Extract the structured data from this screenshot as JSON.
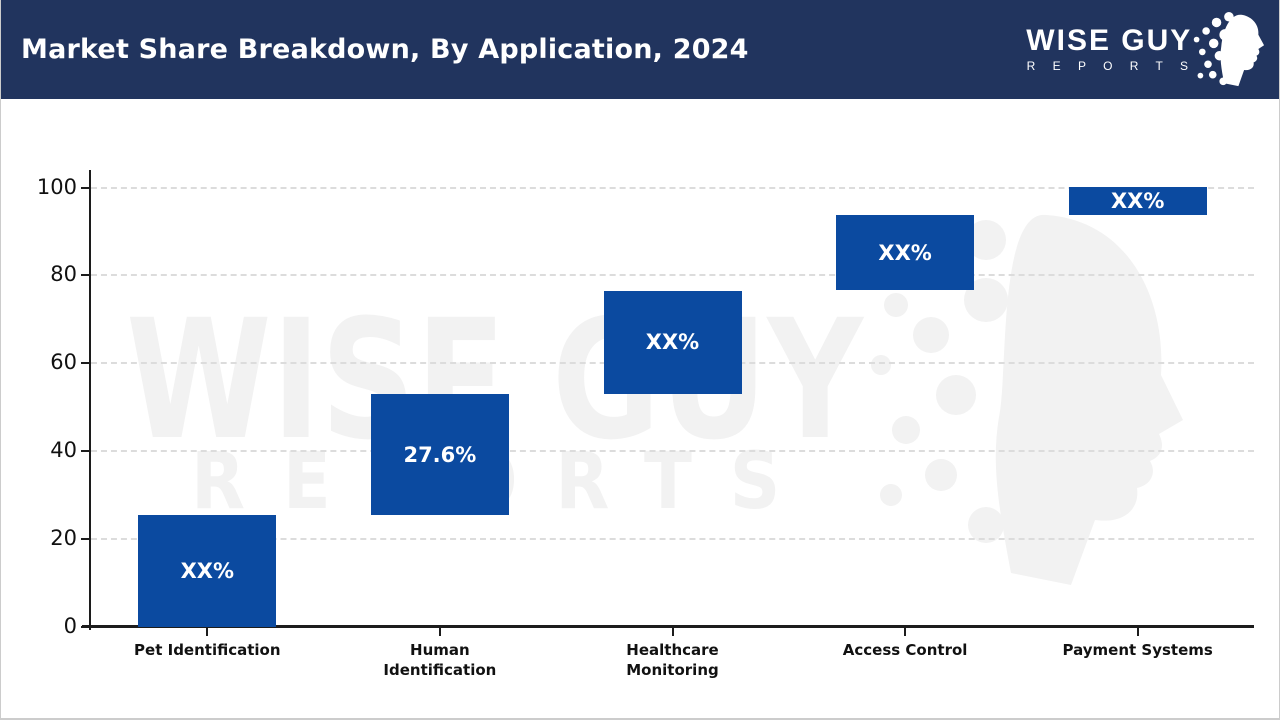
{
  "header": {
    "title": "Market Share Breakdown, By Application, 2024",
    "logo": {
      "name": "WISE GUY",
      "subtitle": "R E P O R T S"
    }
  },
  "watermark": {
    "line1": "WISE GUY",
    "line2": "REPORTS"
  },
  "colors": {
    "header_bg": "#21345e",
    "bar": "#0b4aa0",
    "bar_label": "#ffffff",
    "axis": "#1c1c1c",
    "grid": "#dcdcdc",
    "text": "#111111",
    "watermark": "#f2f2f2"
  },
  "chart_data": {
    "type": "bar",
    "subtype": "waterfall-floating-segments",
    "title": "Market Share Breakdown, By Application, 2024",
    "categories": [
      "Pet Identification",
      "Human Identification",
      "Healthcare Monitoring",
      "Access Control",
      "Payment Systems"
    ],
    "category_lines": [
      [
        "Pet Identification"
      ],
      [
        "Human",
        "Identification"
      ],
      [
        "Healthcare",
        "Monitoring"
      ],
      [
        "Access Control"
      ],
      [
        "Payment Systems"
      ]
    ],
    "segments": [
      {
        "category": "Pet Identification",
        "start": 0,
        "end": 25.5,
        "label": "XX%"
      },
      {
        "category": "Human Identification",
        "start": 25.5,
        "end": 53.0,
        "label": "27.6%"
      },
      {
        "category": "Healthcare Monitoring",
        "start": 53.1,
        "end": 76.4,
        "label": "XX%"
      },
      {
        "category": "Access Control",
        "start": 76.6,
        "end": 93.7,
        "label": "XX%"
      },
      {
        "category": "Payment Systems",
        "start": 93.8,
        "end": 100.2,
        "label": "XX%"
      }
    ],
    "yticks": [
      0,
      20,
      40,
      60,
      80,
      100
    ],
    "ylim": [
      0,
      104
    ],
    "xlabel": "",
    "ylabel": "",
    "grid": "horizontal-dashed",
    "legend": "none"
  }
}
